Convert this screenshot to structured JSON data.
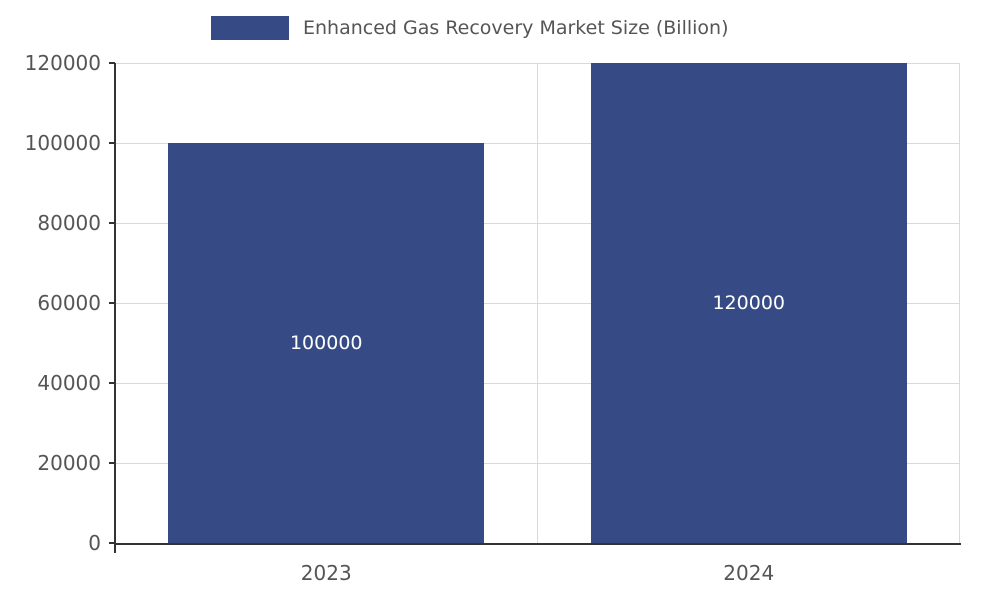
{
  "chart_data": {
    "type": "bar",
    "title": "Enhanced Gas Recovery Market Size (Billion)",
    "categories": [
      "2023",
      "2024"
    ],
    "values": [
      100000,
      120000
    ],
    "value_labels": [
      "100000",
      "120000"
    ],
    "ytick_labels": [
      "0",
      "20000",
      "40000",
      "60000",
      "80000",
      "100000",
      "120000"
    ],
    "ytick_values": [
      0,
      20000,
      40000,
      60000,
      80000,
      100000,
      120000
    ],
    "ylim": [
      0,
      120000
    ],
    "xlabel": "",
    "ylabel": "",
    "grid": "on",
    "legend_position": "top",
    "bar_color": "#364b85",
    "value_label_color": "#ffffff",
    "tick_label_color": "#555555",
    "grid_color": "#d9d9d9",
    "axis_color": "#333333"
  }
}
